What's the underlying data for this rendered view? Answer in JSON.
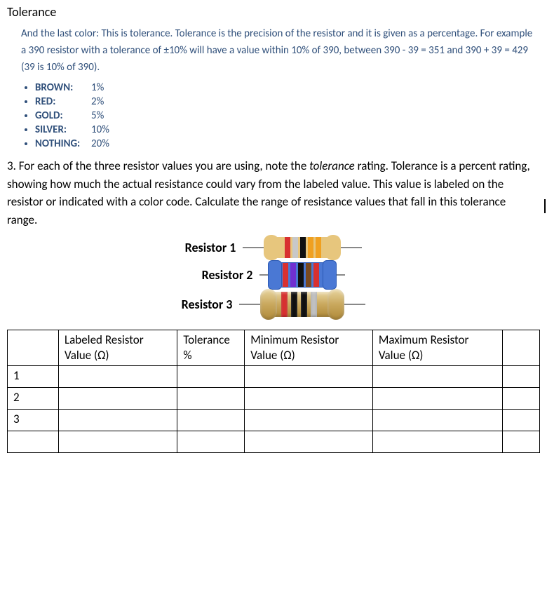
{
  "heading": "Tolerance",
  "intro": "And the last color: This is tolerance. Tolerance is the precision of the resistor and it is given as a percentage. For example a 390 resistor with a tolerance of ±10% will have a value within 10% of 390, between 390 - 39 = 351 and 390 + 39 = 429 (39 is 10% of 390).",
  "tolerance_codes": [
    {
      "code": "BROWN:",
      "pct": "1%"
    },
    {
      "code": "RED:",
      "pct": "2%"
    },
    {
      "code": "GOLD:",
      "pct": "5%"
    },
    {
      "code": "SILVER:",
      "pct": "10%"
    },
    {
      "code": "NOTHING:",
      "pct": "20%"
    }
  ],
  "question_prefix": "3. For each of the three resistor values you are using, note the ",
  "question_em": "tolerance",
  "question_suffix": " rating. Tolerance is a percent rating, showing how much the actual resistance could vary from the labeled value. This value is labeled on the resistor or indicated with a color code. Calculate the range of resistance values that fall in this tolerance range.",
  "resistors": {
    "r1": {
      "label": "Resistor 1",
      "body_color": "#e7c67d",
      "bands": [
        "#d83030",
        "#c8c8c8",
        "#101010",
        "#f0a020",
        "#f0a020"
      ]
    },
    "r2": {
      "label": "Resistor 2",
      "body_color": "#4a78d4",
      "bands": [
        "#d83030",
        "#7030d0",
        "#101010",
        "#7a4a20",
        "#d83030"
      ]
    },
    "r3": {
      "label": "Resistor 3",
      "body_color": "#c9a85d",
      "bands": [
        "#d83030",
        "#101010",
        "#101010",
        "#c0c0c0"
      ]
    }
  },
  "table": {
    "headers": {
      "h1": "Labeled Resistor Value (Ω)",
      "h2": "Tolerance %",
      "h3": "Minimum Resistor Value (Ω)",
      "h4": "Maximum Resistor Value (Ω)"
    },
    "rows": [
      "1",
      "2",
      "3",
      ""
    ]
  }
}
